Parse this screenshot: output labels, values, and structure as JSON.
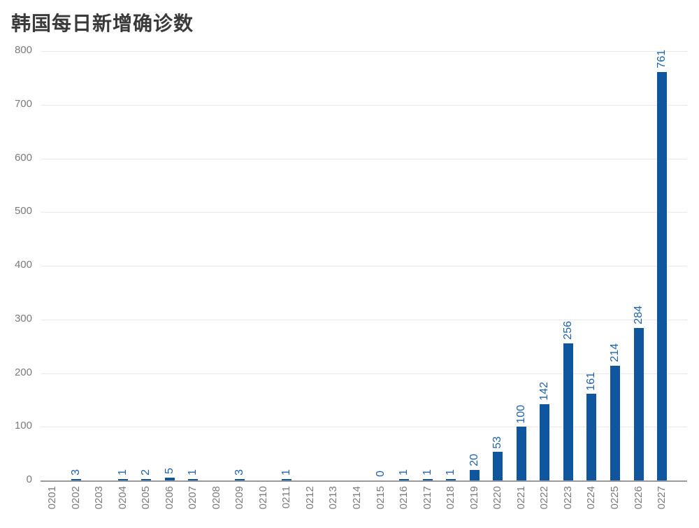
{
  "chart_data": {
    "type": "bar",
    "title": "韩国每日新增确诊数",
    "categories": [
      "0201",
      "0202",
      "0203",
      "0204",
      "0205",
      "0206",
      "0207",
      "0208",
      "0209",
      "0210",
      "0211",
      "0212",
      "0213",
      "0214",
      "0215",
      "0216",
      "0217",
      "0218",
      "0219",
      "0220",
      "0221",
      "0222",
      "0223",
      "0224",
      "0225",
      "0226",
      "0227"
    ],
    "values": [
      null,
      3,
      null,
      1,
      2,
      5,
      1,
      null,
      3,
      null,
      1,
      null,
      null,
      null,
      0,
      1,
      1,
      1,
      20,
      53,
      100,
      142,
      256,
      161,
      214,
      284,
      761
    ],
    "xlabel": "",
    "ylabel": "",
    "ylim": [
      0,
      800
    ],
    "y_ticks": [
      0,
      100,
      200,
      300,
      400,
      500,
      600,
      700,
      800
    ],
    "grid": true,
    "legend": "none",
    "value_labels_shown": true,
    "x_label_rotation_deg": 90,
    "value_label_rotation_deg": 90,
    "colors": {
      "bar": "#10569f",
      "value_label": "#2263a8",
      "axis_label": "#7a7a7a",
      "gridline": "#e8e8e8",
      "axis_line": "#9a9a9a",
      "title": "#3a3a3a",
      "background": "#ffffff"
    }
  }
}
